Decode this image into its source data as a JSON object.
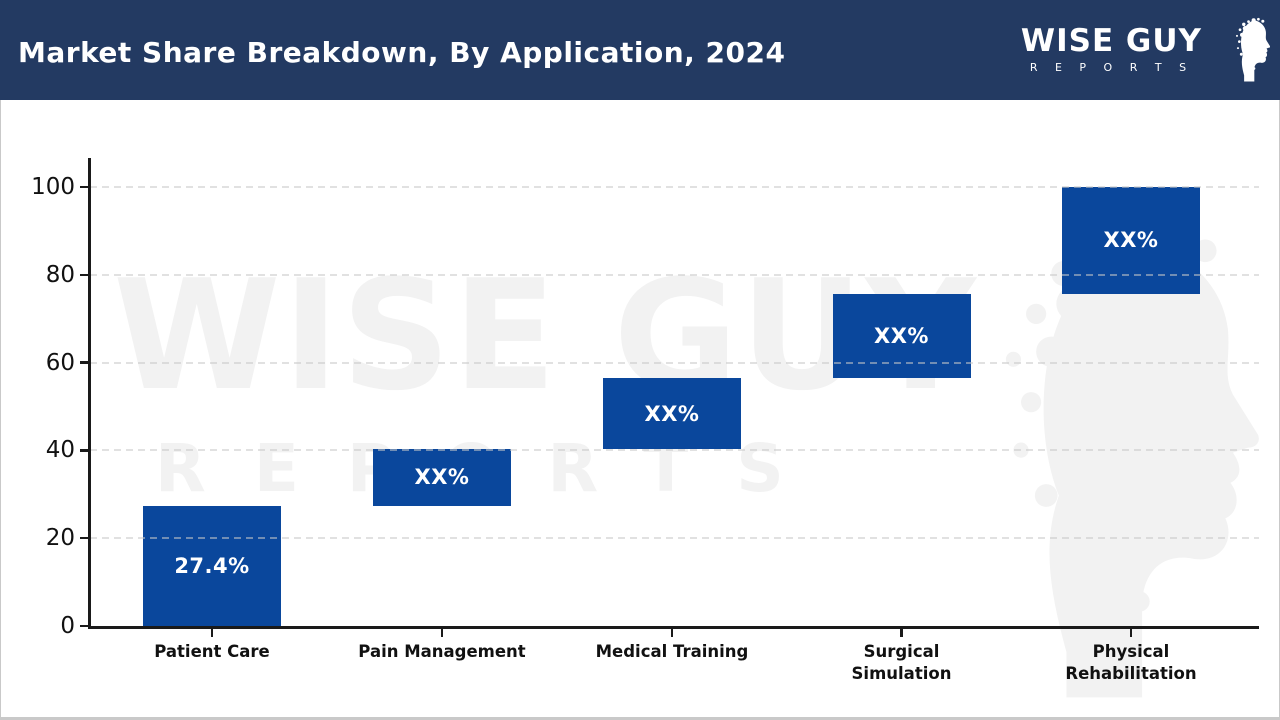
{
  "header": {
    "title": "Market Share Breakdown, By Application, 2024"
  },
  "brand": {
    "line1": "WISE GUY",
    "line2": "R E P O R T S",
    "face_icon": "dotted-head-profile"
  },
  "watermark": {
    "line1": "WISE GUY",
    "line2": "REPORTS",
    "face_icon": "dotted-head-profile"
  },
  "chart_data": {
    "type": "bar",
    "subtype": "waterfall",
    "title": "Market Share Breakdown, By Application, 2024",
    "xlabel": "",
    "ylabel": "",
    "ylim": [
      0,
      100
    ],
    "yticks": [
      0,
      20,
      40,
      60,
      80,
      100
    ],
    "grid": "horizontal-dashed",
    "legend": "none",
    "bar_color": "#0a479c",
    "categories": [
      "Patient Care",
      "Pain Management",
      "Medical Training",
      "Surgical Simulation",
      "Physical Rehabilitation"
    ],
    "category_display_lines": [
      [
        "Patient Care"
      ],
      [
        "Pain Management"
      ],
      [
        "Medical Training"
      ],
      [
        "Surgical",
        "Simulation"
      ],
      [
        "Physical",
        "Rehabilitation"
      ]
    ],
    "segments": [
      {
        "category": "Patient Care",
        "start": 0,
        "end": 27.4,
        "label": "27.4%"
      },
      {
        "category": "Pain Management",
        "start": 27.4,
        "end": 40.4,
        "label": "XX%"
      },
      {
        "category": "Medical Training",
        "start": 40.4,
        "end": 56.4,
        "label": "XX%"
      },
      {
        "category": "Surgical Simulation",
        "start": 56.4,
        "end": 75.7,
        "label": "XX%"
      },
      {
        "category": "Physical Rehabilitation",
        "start": 75.7,
        "end": 100,
        "label": "XX%"
      }
    ]
  },
  "colors": {
    "header_bg": "#233a62",
    "bar": "#0a479c",
    "axis": "#1a1a1a",
    "watermark": "#f2f2f2",
    "page_border": "#c9c9c9"
  }
}
